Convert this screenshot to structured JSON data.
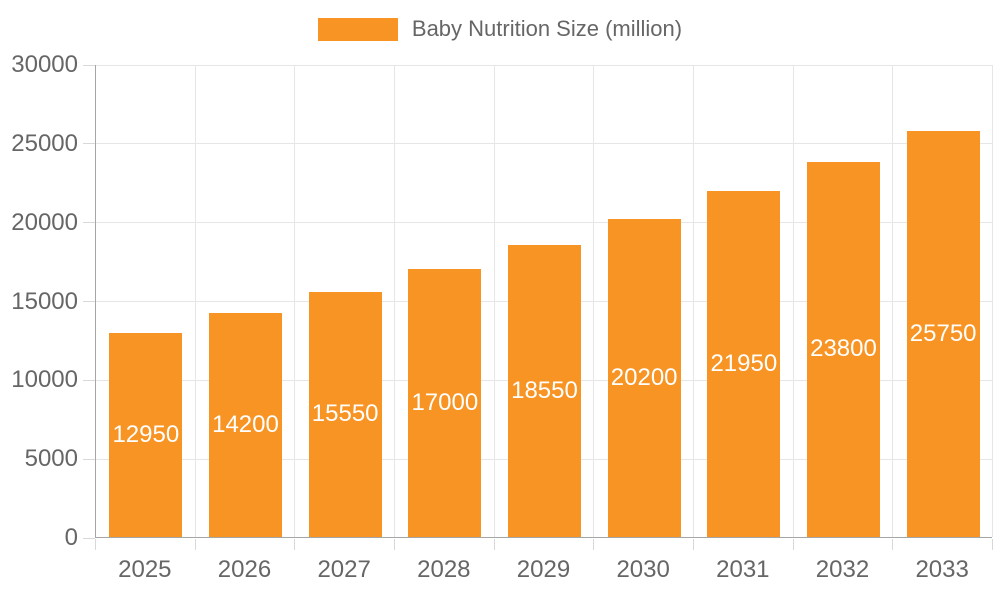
{
  "chart_data": {
    "type": "bar",
    "title": "",
    "legend": "Baby Nutrition Size (million)",
    "legend_position": "top",
    "categories": [
      "2025",
      "2026",
      "2027",
      "2028",
      "2029",
      "2030",
      "2031",
      "2032",
      "2033"
    ],
    "series": [
      {
        "name": "Baby Nutrition Size (million)",
        "values": [
          12950,
          14200,
          15550,
          17000,
          18550,
          20200,
          21950,
          23800,
          25750
        ]
      }
    ],
    "value_labels_shown": true,
    "xlabel": "",
    "ylabel": "",
    "ylim": [
      0,
      30000
    ],
    "ytick_step": 5000,
    "ytick_labels": [
      "0",
      "5000",
      "10000",
      "15000",
      "20000",
      "25000",
      "30000"
    ],
    "grid": true,
    "colors": {
      "bar": "#f79423",
      "value_label_text": "#ffffff",
      "axis_text": "#666666",
      "axis_line": "#a6a6a6",
      "tick_line": "#d8d8d8",
      "gridline": "#e6e6e6",
      "background": "#ffffff"
    }
  }
}
